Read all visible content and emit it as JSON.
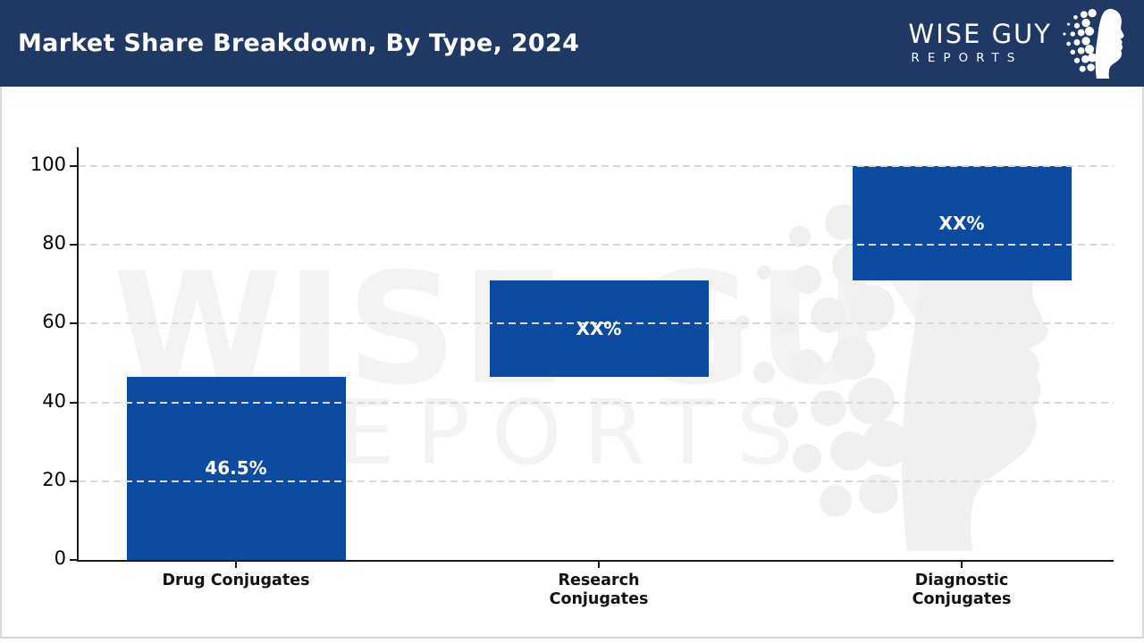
{
  "header": {
    "title": "Market Share Breakdown, By Type, 2024",
    "logo": {
      "line1": "WISE GUY",
      "line2": "REPORTS"
    }
  },
  "watermark": {
    "line1": "WISE GUY",
    "line2": "REPORTS"
  },
  "chart_data": {
    "type": "bar",
    "subtype": "floating-segment-waterfall",
    "title": "Market Share Breakdown, By Type, 2024",
    "categories": [
      [
        "Drug Conjugates"
      ],
      [
        "Research",
        "Conjugates"
      ],
      [
        "Diagnostic",
        "Conjugates"
      ]
    ],
    "bars": [
      {
        "category": "Drug Conjugates",
        "start": 0,
        "end": 46.5,
        "value": 46.5,
        "label": "46.5%"
      },
      {
        "category": "Research Conjugates",
        "start": 46.5,
        "end": 71,
        "value": 24.5,
        "label": "XX%"
      },
      {
        "category": "Diagnostic Conjugates",
        "start": 71,
        "end": 100,
        "value": 29,
        "label": "XX%"
      }
    ],
    "yticks": [
      0,
      20,
      40,
      60,
      80,
      100
    ],
    "ylim": [
      0,
      100
    ],
    "xlabel": "",
    "ylabel": "",
    "grid": "horizontal-dashed",
    "legend": "none",
    "colors": {
      "bar": "#0d4ba0",
      "bar_label": "#ffffff",
      "grid": "#d9d9d9",
      "axis": "#1a1a1a",
      "header_bg": "#203864",
      "watermark": "#f3f3f3"
    }
  }
}
